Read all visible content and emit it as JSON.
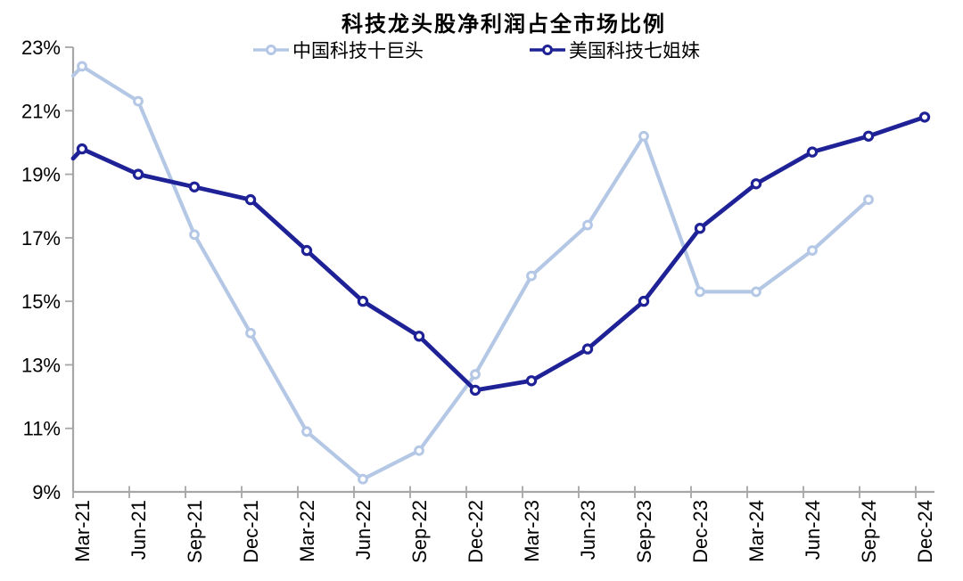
{
  "page": {
    "background": "#ffffff",
    "text_color": "#000000"
  },
  "chart": {
    "title": "科技龙头股净利润占全市场比例"
  },
  "chart_data": {
    "type": "line",
    "title": "科技龙头股净利润占全市场比例",
    "categories": [
      "Mar-21",
      "Jun-21",
      "Sep-21",
      "Dec-21",
      "Mar-22",
      "Jun-22",
      "Sep-22",
      "Dec-22",
      "Mar-23",
      "Jun-23",
      "Sep-23",
      "Dec-23",
      "Mar-24",
      "Jun-24",
      "Sep-24",
      "Dec-24"
    ],
    "series": [
      {
        "name": "中国科技十巨头",
        "color": "#b4c8e6",
        "values": [
          22.4,
          21.3,
          17.1,
          14.0,
          10.9,
          9.4,
          10.3,
          12.7,
          15.8,
          17.4,
          20.2,
          15.3,
          15.3,
          16.6,
          18.2,
          null
        ],
        "edge_value": 22.1
      },
      {
        "name": "美国科技七姐妹",
        "color": "#1e2296",
        "values": [
          19.8,
          19.0,
          18.6,
          18.2,
          16.6,
          15.0,
          13.9,
          12.2,
          12.5,
          13.5,
          15.0,
          17.3,
          18.7,
          19.7,
          20.2,
          20.8
        ],
        "edge_value": 19.5
      }
    ],
    "xlabel": "",
    "ylabel": "",
    "ylim": [
      9,
      23
    ],
    "ytick_values": [
      9,
      11,
      13,
      15,
      17,
      19,
      21,
      23
    ],
    "ytick_labels": [
      "9%",
      "11%",
      "13%",
      "15%",
      "17%",
      "19%",
      "21%",
      "23%"
    ],
    "legend_position": "top",
    "grid": false,
    "marker_style": "open-circle",
    "axis_color": "#a6a6a6",
    "text_color": "#000000"
  }
}
